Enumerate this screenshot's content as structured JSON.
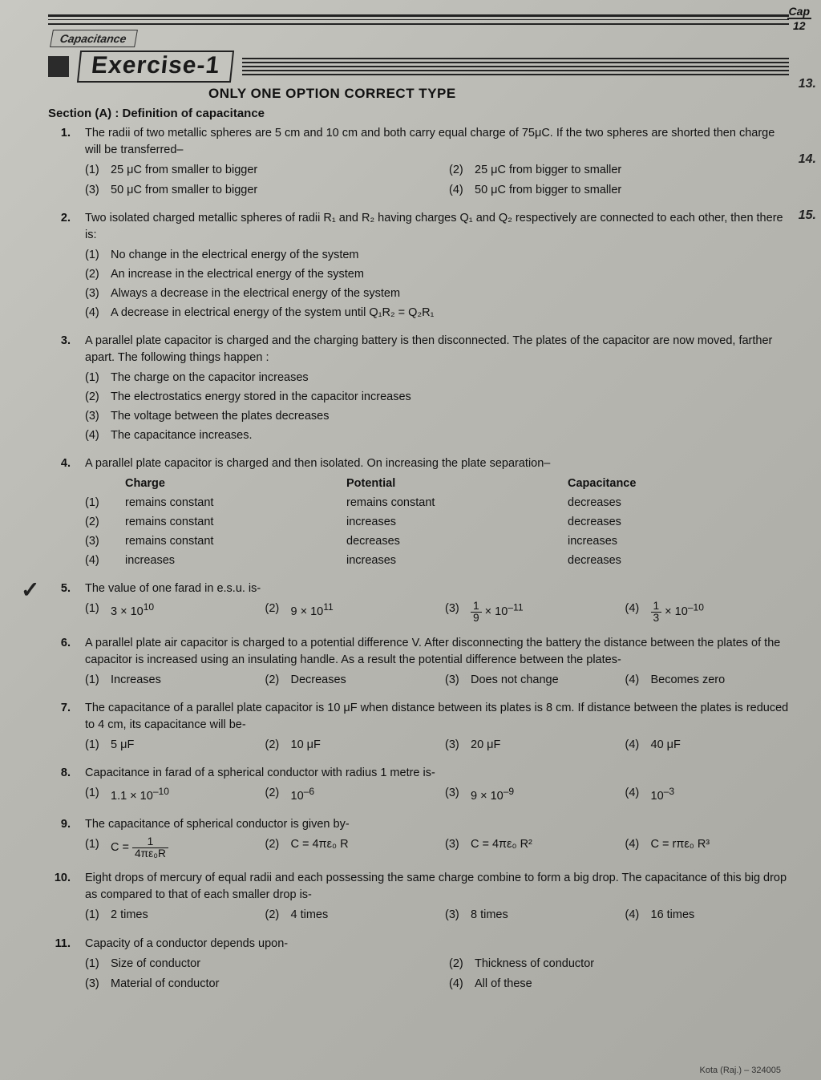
{
  "chapter": "Capacitance",
  "exercise_title": "Exercise-1",
  "subtitle": "ONLY ONE OPTION CORRECT TYPE",
  "section_head": "Section (A) : Definition of capacitance",
  "corner_frac": {
    "top": "Cap",
    "bot": "12"
  },
  "margin_nums": [
    "13.",
    "14.",
    "15."
  ],
  "footer": "Kota (Raj.) – 324005",
  "checked_q": 5,
  "questions": [
    {
      "n": "1.",
      "text": "The radii of two metallic spheres are 5 cm and 10 cm and both carry equal charge of 75μC. If the two spheres are shorted then charge will be transferred–",
      "layout": "grid2",
      "opts": [
        "25 μC from smaller to bigger",
        "25 μC from bigger to smaller",
        "50 μC from smaller to bigger",
        "50 μC from bigger to smaller"
      ]
    },
    {
      "n": "2.",
      "text": "Two isolated charged metallic spheres of radii R₁ and R₂ having charges Q₁ and Q₂ respectively are connected to each other, then there is:",
      "layout": "list",
      "opts": [
        "No change in the electrical energy of the system",
        "An increase in the electrical energy of the system",
        "Always a decrease in the electrical energy of the system",
        "A decrease in electrical energy of the system until Q₁R₂ = Q₂R₁"
      ]
    },
    {
      "n": "3.",
      "text": "A parallel plate capacitor is charged and the charging battery is then disconnected. The plates of the capacitor are now moved, farther apart. The following things happen :",
      "layout": "list",
      "opts": [
        "The charge on the capacitor increases",
        "The electrostatics energy stored in the capacitor increases",
        "The voltage between the plates decreases",
        "The capacitance increases."
      ]
    },
    {
      "n": "4.",
      "text": "A parallel plate capacitor is charged and then isolated. On increasing the plate separation–",
      "layout": "table",
      "headers": [
        "",
        "Charge",
        "Potential",
        "Capacitance"
      ],
      "rows": [
        [
          "(1)",
          "remains constant",
          "remains constant",
          "decreases"
        ],
        [
          "(2)",
          "remains constant",
          "increases",
          "decreases"
        ],
        [
          "(3)",
          "remains constant",
          "decreases",
          "increases"
        ],
        [
          "(4)",
          "increases",
          "increases",
          "decreases"
        ]
      ]
    },
    {
      "n": "5.",
      "text": "The value of one farad in e.s.u. is-",
      "layout": "horiz4",
      "opts_html": [
        "3 × 10<sup>10</sup>",
        "9 × 10<sup>11</sup>",
        "<span class='frac'><span class='n'>1</span><span class='d'>9</span></span> × 10<sup>–11</sup>",
        "<span class='frac'><span class='n'>1</span><span class='d'>3</span></span> × 10<sup>–10</sup>"
      ]
    },
    {
      "n": "6.",
      "text": "A parallel plate air capacitor is charged to a potential difference V. After disconnecting the battery the distance between the plates of the capacitor is increased using an insulating handle. As a result the potential difference between the plates-",
      "layout": "horiz4",
      "opts": [
        "Increases",
        "Decreases",
        "Does not change",
        "Becomes zero"
      ]
    },
    {
      "n": "7.",
      "text": "The capacitance of a parallel plate capacitor is 10 μF when distance between its plates is 8 cm. If distance between the plates is reduced to 4 cm, its capacitance will be-",
      "layout": "horiz4",
      "opts": [
        "5 μF",
        "10 μF",
        "20 μF",
        "40 μF"
      ]
    },
    {
      "n": "8.",
      "text": "Capacitance in farad of a spherical conductor with radius 1 metre is-",
      "layout": "horiz4",
      "opts_html": [
        "1.1 × 10<sup>–10</sup>",
        "10<sup>–6</sup>",
        "9 × 10<sup>–9</sup>",
        "10<sup>–3</sup>"
      ]
    },
    {
      "n": "9.",
      "text": "The capacitance of spherical conductor is given by-",
      "layout": "horiz4",
      "opts_html": [
        "C = <span class='frac'><span class='n'>1</span><span class='d'>4πε₀R</span></span>",
        "C = 4πε₀ R",
        "C = 4πε₀ R²",
        "C = rπε₀ R³"
      ]
    },
    {
      "n": "10.",
      "text": "Eight drops of mercury of equal radii and each possessing the same charge combine to form a big drop. The capacitance of this big drop as compared to that of each smaller drop is-",
      "layout": "horiz4",
      "opts": [
        "2 times",
        "4 times",
        "8 times",
        "16 times"
      ]
    },
    {
      "n": "11.",
      "text": "Capacity of a conductor depends upon-",
      "layout": "grid2",
      "opts": [
        "Size of conductor",
        "Thickness of conductor",
        "Material of conductor",
        "All of these"
      ]
    }
  ],
  "colors": {
    "page_bg": "#b8b8b2",
    "text": "#111",
    "dark": "#222"
  }
}
